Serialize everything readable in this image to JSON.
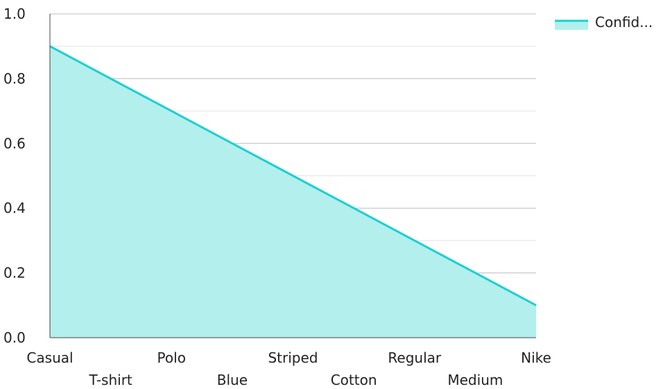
{
  "chart_data": {
    "type": "area",
    "categories": [
      "Casual",
      "T-shirt",
      "Polo",
      "Blue",
      "Striped",
      "Cotton",
      "Regular",
      "Medium",
      "Nike"
    ],
    "series": [
      {
        "name": "Confid...",
        "values": [
          0.9,
          0.8,
          0.7,
          0.6,
          0.5,
          0.4,
          0.3,
          0.2,
          0.1
        ],
        "line_color": "#1ccfcf",
        "fill_color": "#b2efed"
      }
    ],
    "y_ticks": [
      "0.0",
      "0.2",
      "0.4",
      "0.6",
      "0.8",
      "1.0"
    ],
    "ylim": [
      0,
      1
    ],
    "grid": true,
    "legend_position": "top-right",
    "title": "",
    "xlabel": "",
    "ylabel": ""
  }
}
